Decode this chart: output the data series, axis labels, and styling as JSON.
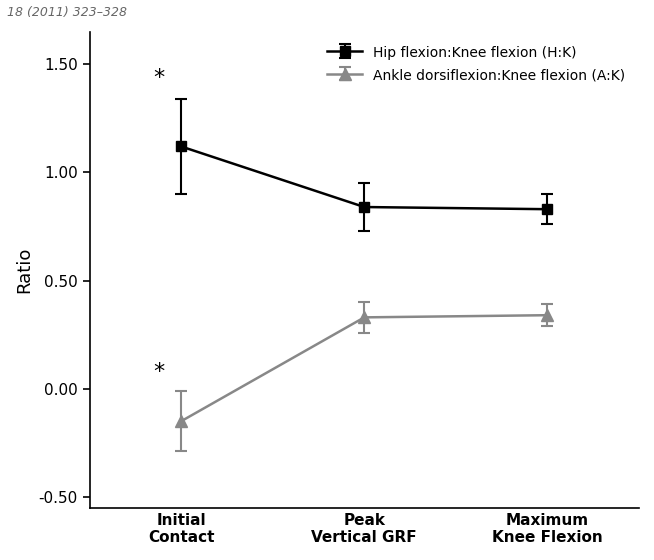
{
  "x_positions": [
    0,
    1,
    2
  ],
  "x_labels": [
    "Initial\nContact",
    "Peak\nVertical GRF",
    "Maximum\nKnee Flexion"
  ],
  "hk_values": [
    1.12,
    0.84,
    0.83
  ],
  "hk_errors": [
    0.22,
    0.11,
    0.07
  ],
  "ak_values": [
    -0.15,
    0.33,
    0.34
  ],
  "ak_errors": [
    0.14,
    0.07,
    0.05
  ],
  "hk_color": "#000000",
  "ak_color": "#888888",
  "ylabel": "Ratio",
  "ylim": [
    -0.55,
    1.65
  ],
  "yticks": [
    -0.5,
    0.0,
    0.5,
    1.0,
    1.5
  ],
  "legend_hk": "Hip flexion:Knee flexion (H:K)",
  "legend_ak": "Ankle dorsiflexion:Knee flexion (A:K)",
  "header_text": "18 (2011) 323–328",
  "figsize": [
    6.54,
    5.6
  ],
  "dpi": 100
}
